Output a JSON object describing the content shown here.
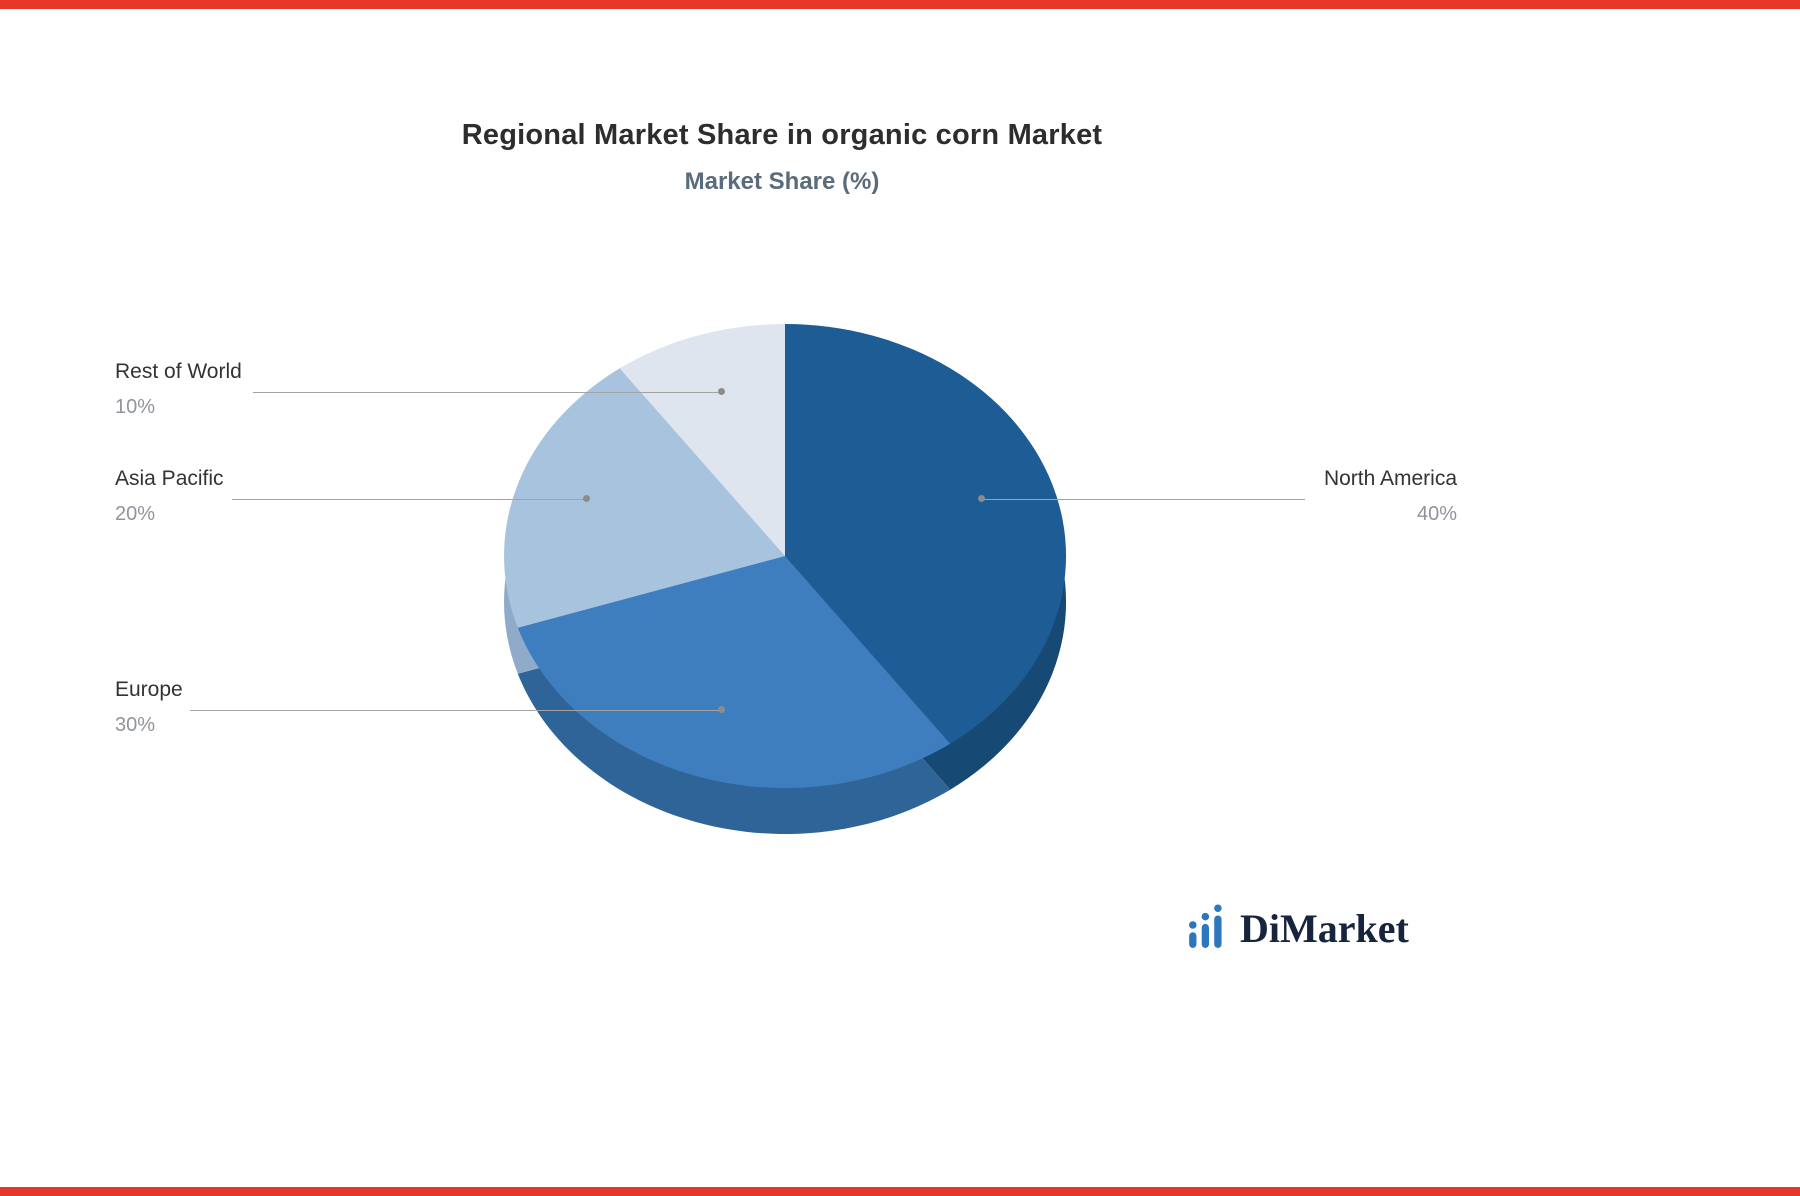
{
  "page": {
    "background": "#ffffff",
    "border_color": "#e5372c"
  },
  "chart_data": {
    "type": "pie",
    "title": "Regional Market Share in organic corn Market",
    "subtitle": "Market Share (%)",
    "categories": [
      "North America",
      "Europe",
      "Asia Pacific",
      "Rest of World"
    ],
    "values": [
      40,
      30,
      20,
      10
    ],
    "labels": [
      "40%",
      "30%",
      "20%",
      "10%"
    ],
    "unit": "%",
    "colors": [
      "#1e5c96",
      "#3e7ebe",
      "#a8c3de",
      "#dfe5ef"
    ],
    "side_colors": [
      "#164a75",
      "#2f6498",
      "#8fabc9",
      "#c9d3e2"
    ],
    "start_angle_deg": 0,
    "direction": "clockwise",
    "style": "3d",
    "legend": "callout-labels-with-leader-lines"
  },
  "branding": {
    "logo_text": "DiMarket",
    "logo_text_color": "#16243d",
    "logo_icon": "bar-chart-icon",
    "logo_icon_color": "#2d77bd"
  }
}
